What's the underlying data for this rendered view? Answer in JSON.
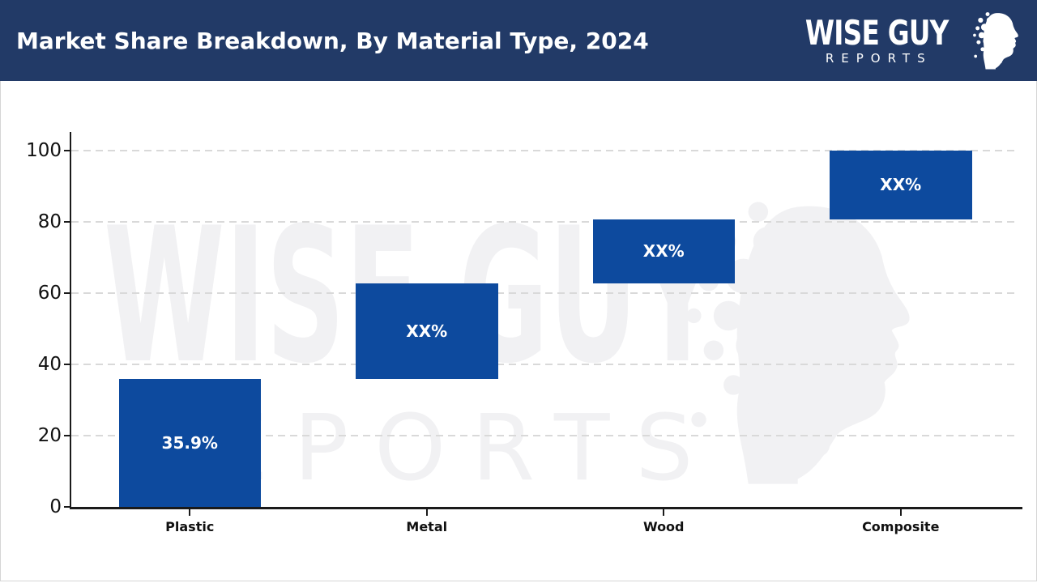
{
  "header": {
    "title": "Market Share Breakdown, By Material Type, 2024",
    "background_color": "#223a67",
    "logo": {
      "line1": "WISE GUY",
      "line2": "REPORTS"
    }
  },
  "watermark": {
    "line1": "WISE GUY",
    "line2": "REPORTS",
    "color": "#f1f1f3"
  },
  "chart_data": {
    "type": "bar",
    "subtype": "waterfall",
    "title": "Market Share Breakdown, By Material Type, 2024",
    "categories": [
      "Plastic",
      "Metal",
      "Wood",
      "Composite"
    ],
    "segments": [
      {
        "category": "Plastic",
        "start": 0,
        "end": 35.9,
        "label": "35.9%"
      },
      {
        "category": "Metal",
        "start": 35.9,
        "end": 62.7,
        "label": "XX%"
      },
      {
        "category": "Wood",
        "start": 62.8,
        "end": 80.7,
        "label": "XX%"
      },
      {
        "category": "Composite",
        "start": 80.7,
        "end": 100,
        "label": "XX%"
      }
    ],
    "ylim": [
      0,
      100
    ],
    "yticks": [
      0,
      20,
      40,
      60,
      80,
      100
    ],
    "grid": "horizontal-dashed",
    "grid_color": "#d9d9d9",
    "bar_color": "#0d4a9e",
    "bar_label_color": "#ffffff",
    "axis_color": "#1a1a1a",
    "legend": null
  }
}
